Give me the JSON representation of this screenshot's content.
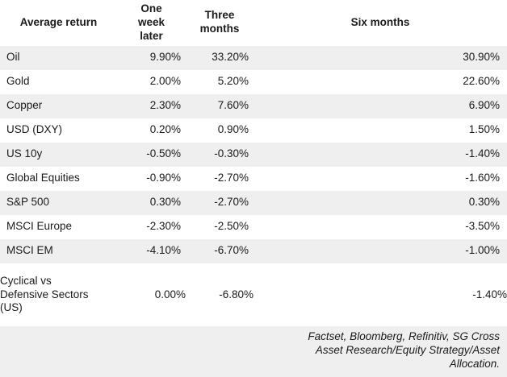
{
  "page": {
    "background": "#ffffff",
    "text_color": "#1a1a1a",
    "stripe_color": "#efefef"
  },
  "table": {
    "headers": {
      "col1": "Average return",
      "col2": "One week later",
      "col3": "Three months",
      "col4": "Six months"
    },
    "rows": [
      [
        "Oil",
        "9.90%",
        "33.20%",
        "30.90%"
      ],
      [
        "Gold",
        "2.00%",
        "5.20%",
        "22.60%"
      ],
      [
        "Copper",
        "2.30%",
        "7.60%",
        "6.90%"
      ],
      [
        "USD (DXY)",
        "0.20%",
        "0.90%",
        "1.50%"
      ],
      [
        "US 10y",
        "-0.50%",
        "-0.30%",
        "-1.40%"
      ],
      [
        "Global Equities",
        "-0.90%",
        "-2.70%",
        "-1.60%"
      ],
      [
        "S&P 500",
        "0.30%",
        "-2.70%",
        "0.30%"
      ],
      [
        "MSCI Europe",
        "-2.30%",
        "-2.50%",
        "-3.50%"
      ],
      [
        "MSCI EM",
        "-4.10%",
        "-6.70%",
        "-1.00%"
      ],
      [
        "Cyclical vs Defensive Sectors (US)",
        "0.00%",
        "-6.80%",
        "-1.40%"
      ]
    ],
    "source": "Factset, Bloomberg, Refinitiv, SG Cross Asset Research/Equity Strategy/Asset Allocation."
  },
  "chart_data": {
    "type": "table",
    "title": "Average return",
    "columns": [
      "Average return",
      "One week later",
      "Three months",
      "Six months"
    ],
    "categories": [
      "Oil",
      "Gold",
      "Copper",
      "USD (DXY)",
      "US 10y",
      "Global Equities",
      "S&P 500",
      "MSCI Europe",
      "MSCI EM",
      "Cyclical vs Defensive Sectors (US)"
    ],
    "series": [
      {
        "name": "One week later",
        "values": [
          9.9,
          2.0,
          2.3,
          0.2,
          -0.5,
          -0.9,
          0.3,
          -2.3,
          -4.1,
          0.0
        ]
      },
      {
        "name": "Three months",
        "values": [
          33.2,
          5.2,
          7.6,
          0.9,
          -0.3,
          -2.7,
          -2.7,
          -2.5,
          -6.7,
          -6.8
        ]
      },
      {
        "name": "Six months",
        "values": [
          30.9,
          22.6,
          6.9,
          1.5,
          -1.4,
          -1.6,
          0.3,
          -3.5,
          -1.0,
          -1.4
        ]
      }
    ],
    "units": "%",
    "source": "Factset, Bloomberg, Refinitiv, SG Cross Asset Research/Equity Strategy/Asset Allocation."
  }
}
